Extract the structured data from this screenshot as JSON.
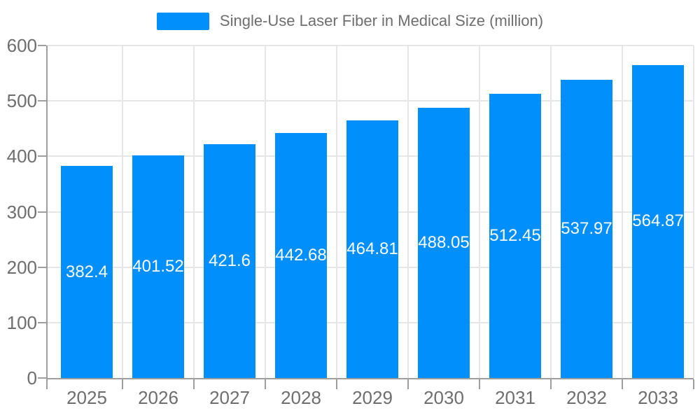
{
  "chart_data": {
    "type": "bar",
    "title": "Single-Use Laser Fiber in Medical Size (million)",
    "categories": [
      "2025",
      "2026",
      "2027",
      "2028",
      "2029",
      "2030",
      "2031",
      "2032",
      "2033"
    ],
    "values": [
      382.4,
      401.52,
      421.6,
      442.68,
      464.81,
      488.05,
      512.45,
      537.97,
      564.87
    ],
    "value_labels": [
      "382.4",
      "401.52",
      "421.6",
      "442.68",
      "464.81",
      "488.05",
      "512.45",
      "537.97",
      "564.87"
    ],
    "xlabel": "",
    "ylabel": "",
    "ylim": [
      0,
      600
    ],
    "yticks": [
      0,
      100,
      200,
      300,
      400,
      500,
      600
    ],
    "grid": true,
    "legend_position": "top",
    "value_label_position": "inside-center",
    "colors": {
      "bar": "#008FFB",
      "value_label_text": "#FFFFFF",
      "axis_text": "#6E6E6E",
      "gridline": "#E6E6E6",
      "axis_line": "#9E9E9E",
      "background": "#FFFFFF"
    }
  }
}
